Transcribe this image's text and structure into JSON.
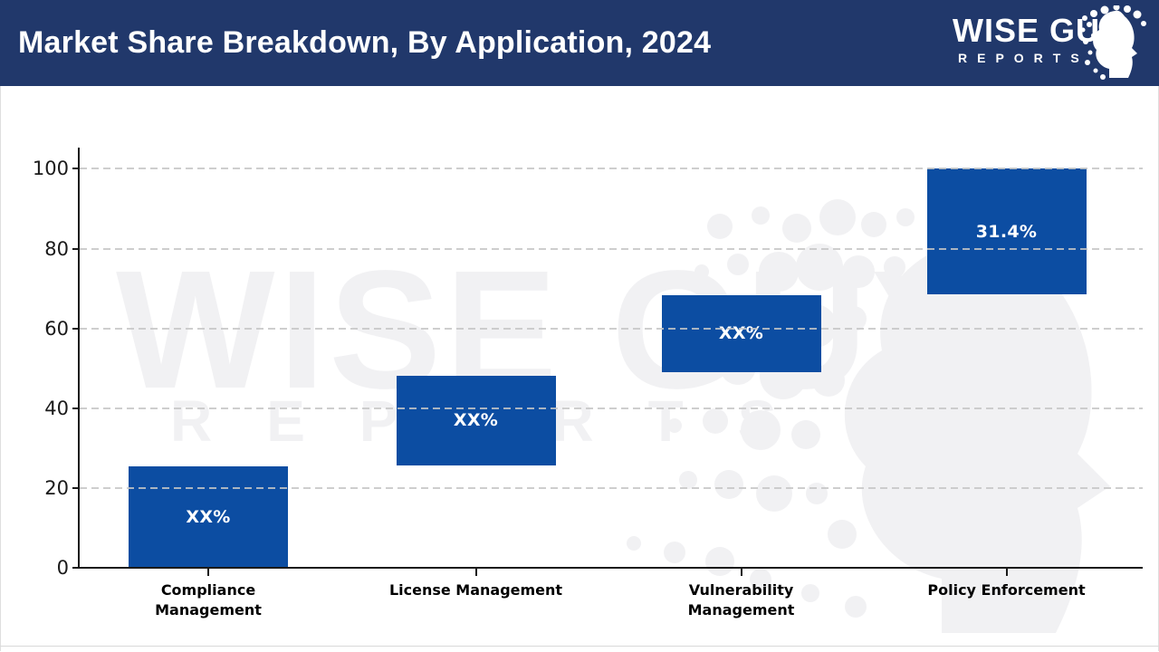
{
  "header": {
    "title": "Market Share Breakdown, By Application, 2024",
    "logo": {
      "line1": "WISE GUY",
      "line2": "REPORTS",
      "icon": "dotted-face-profile-icon"
    }
  },
  "watermark": {
    "line1": "WISE GUY",
    "line2": "REPORTS",
    "icon": "dotted-face-profile-icon"
  },
  "colors": {
    "header_bg": "#21386B",
    "bar": "#0C4DA2",
    "bar_label": "#FFFFFF",
    "grid": "#CFCFCF",
    "axis": "#1A1A1A",
    "tick_label": "#1A1A1A",
    "category_label": "#000000",
    "watermark": "#F1F1F3",
    "page_bg": "#FFFFFF"
  },
  "chart_data": {
    "type": "bar",
    "variant": "floating-cumulative-bars",
    "title": "Market Share Breakdown, By Application, 2024",
    "unit": "percent market share",
    "categories": [
      "Compliance Management",
      "License Management",
      "Vulnerability Management",
      "Policy Enforcement"
    ],
    "category_lines": [
      [
        "Compliance",
        "Management"
      ],
      [
        "License Management"
      ],
      [
        "Vulnerability",
        "Management"
      ],
      [
        "Policy Enforcement"
      ]
    ],
    "segments": [
      {
        "category": "Compliance Management",
        "start": 0,
        "end": 25.4,
        "label": "XX%"
      },
      {
        "category": "License Management",
        "start": 25.7,
        "end": 48.1,
        "label": "XX%"
      },
      {
        "category": "Vulnerability Management",
        "start": 49.0,
        "end": 68.4,
        "label": "XX%"
      },
      {
        "category": "Policy Enforcement",
        "start": 68.6,
        "end": 100,
        "label": "31.4%",
        "value": 31.4
      }
    ],
    "xlabel": "",
    "ylabel": "",
    "yticks": [
      0,
      20,
      40,
      60,
      80,
      100
    ],
    "ylim": [
      0,
      105.5
    ],
    "grid": {
      "horizontal": true,
      "style": "dashed",
      "above_bars": true
    },
    "legend": "none"
  }
}
